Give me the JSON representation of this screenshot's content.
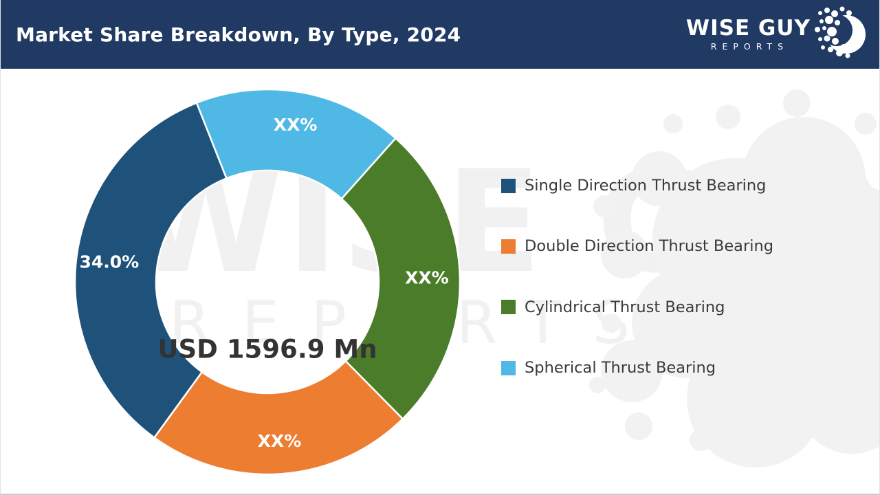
{
  "header": {
    "title": "Market Share Breakdown, By Type, 2024",
    "bg_color": "#203a64",
    "logo": {
      "wordmark": "WISE GUY",
      "subtext": "REPORTS"
    }
  },
  "watermark": {
    "line1": "WISE GUY",
    "line2": "REPORTS"
  },
  "chart_data": {
    "type": "pie",
    "subtype": "donut",
    "title": "Market Share Breakdown, By Type, 2024",
    "center_label": "USD 1596.9 Mn",
    "start_angle_deg": -21.6,
    "donut_hole_ratio": 0.58,
    "legend_position": "right",
    "segments": [
      {
        "label": "Spherical Thrust Bearing",
        "display_value": "XX%",
        "value_pct": 17.6,
        "color": "#4fb8e4"
      },
      {
        "label": "Cylindrical Thrust Bearing",
        "display_value": "XX%",
        "value_pct": 26.0,
        "color": "#4a7c29"
      },
      {
        "label": "Double Direction Thrust Bearing",
        "display_value": "XX%",
        "value_pct": 22.4,
        "color": "#ed7d31"
      },
      {
        "label": "Single Direction Thrust Bearing",
        "display_value": "34.0%",
        "value_pct": 34.0,
        "color": "#1f527b"
      }
    ],
    "legend": [
      {
        "label": "Single Direction Thrust Bearing",
        "color": "#1f527b"
      },
      {
        "label": "Double Direction Thrust Bearing",
        "color": "#ed7d31"
      },
      {
        "label": "Cylindrical Thrust Bearing",
        "color": "#4a7c29"
      },
      {
        "label": "Spherical Thrust Bearing",
        "color": "#4fb8e4"
      }
    ]
  }
}
